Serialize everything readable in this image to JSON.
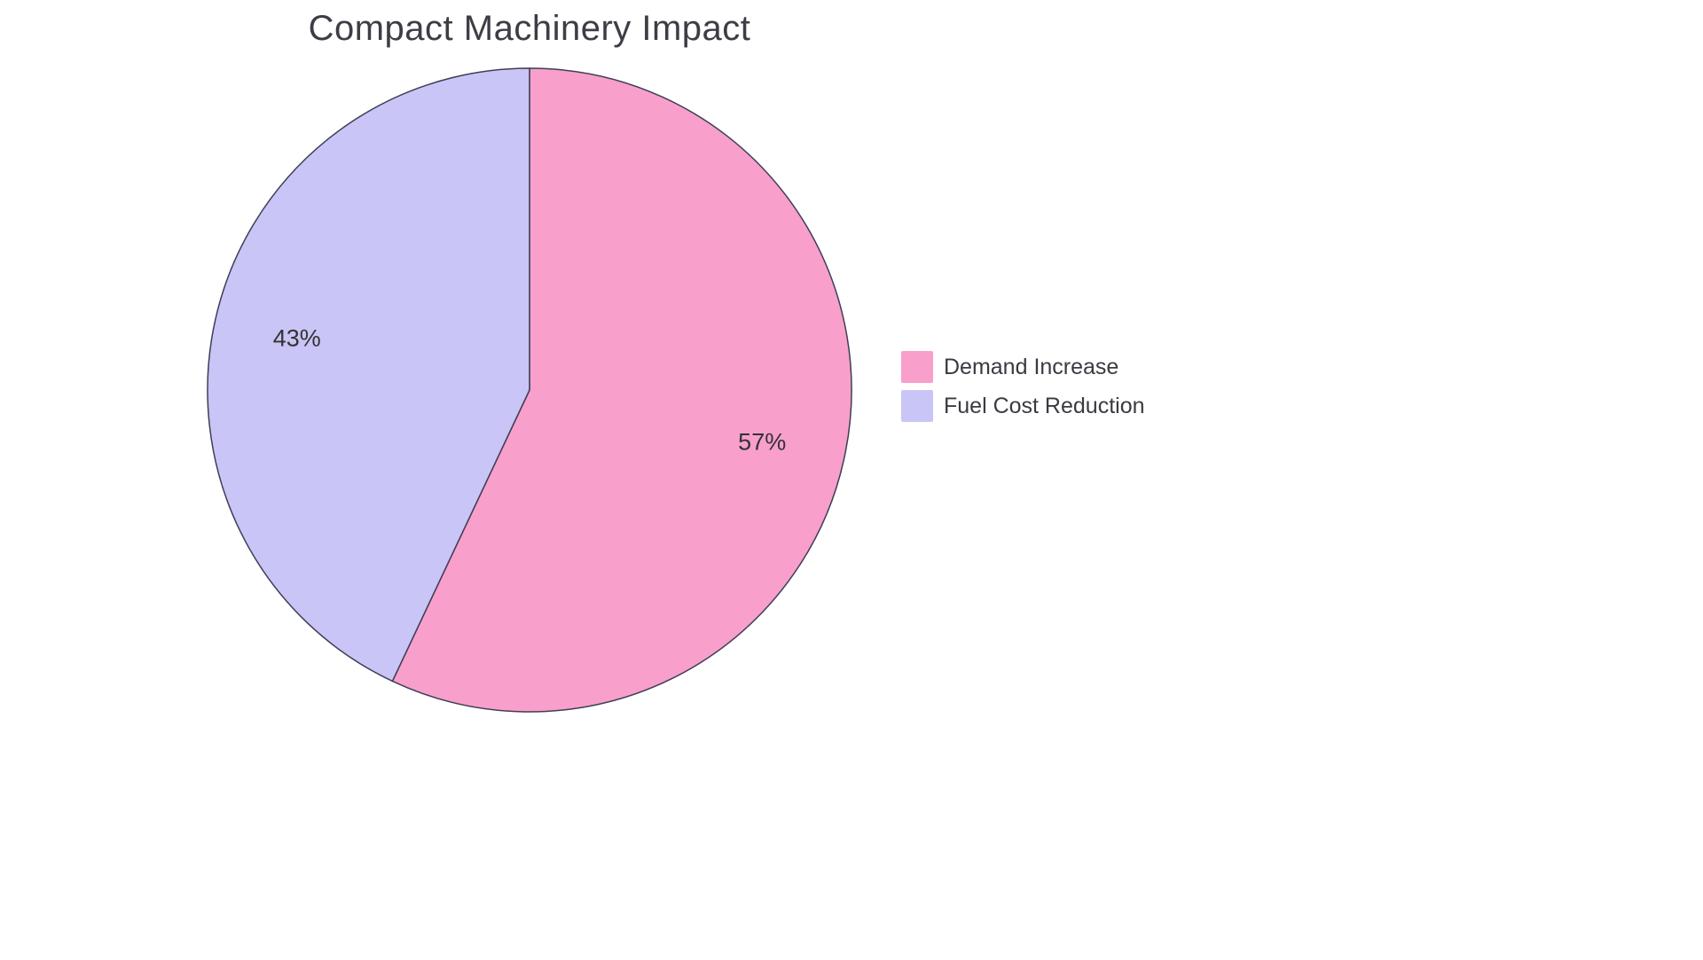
{
  "chart_data": {
    "type": "pie",
    "title": "Compact Machinery Impact",
    "series": [
      {
        "label": "Demand Increase",
        "value": 57,
        "display": "57%",
        "color": "#F89FCB"
      },
      {
        "label": "Fuel Cost Reduction",
        "value": 43,
        "display": "43%",
        "color": "#C9C5F6"
      }
    ],
    "start_angle_deg": 0,
    "direction": "clockwise",
    "slice_border_color": "#3E3E55",
    "slice_border_width": 1.5,
    "label_color": "#333333",
    "label_radius_ratio": 0.74,
    "legend_position": "right",
    "background": "#FFFFFF"
  }
}
